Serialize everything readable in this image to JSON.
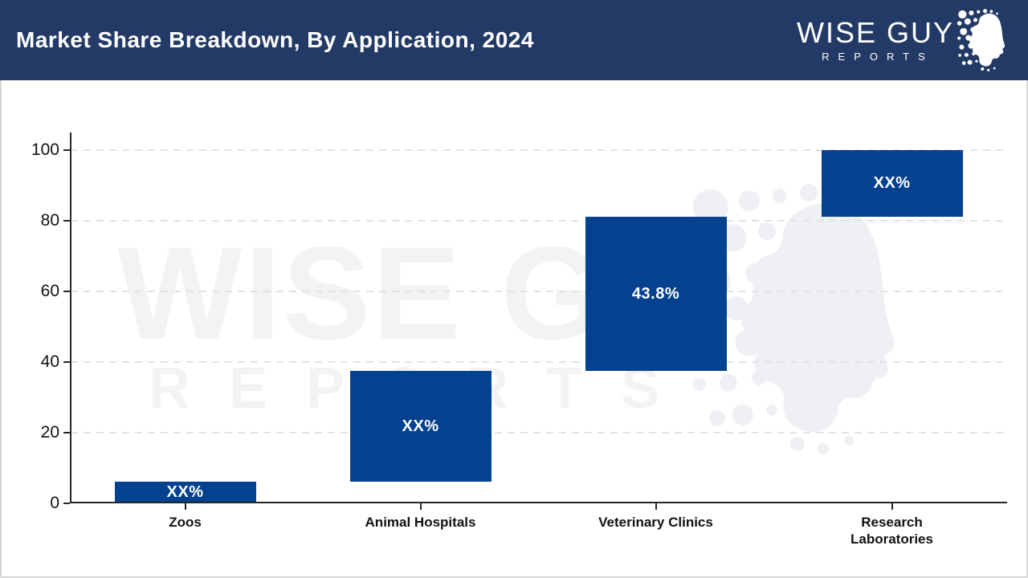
{
  "header": {
    "title": "Market Share Breakdown, By Application, 2024",
    "logo": {
      "name": "WISE GUY",
      "sub": "REPORTS"
    }
  },
  "watermark": {
    "brand": "WISE GUY",
    "sub": "REPORTS"
  },
  "chart_data": {
    "type": "bar",
    "subtype": "floating-segment-waterfall",
    "title": "Market Share Breakdown, By Application, 2024",
    "xlabel": "",
    "ylabel": "",
    "categories": [
      "Zoos",
      "Animal Hospitals",
      "Veterinary Clinics",
      "Research Laboratories"
    ],
    "category_lines": [
      [
        "Zoos"
      ],
      [
        "Animal Hospitals"
      ],
      [
        "Veterinary Clinics"
      ],
      [
        "Research",
        "Laboratories"
      ]
    ],
    "series": [
      {
        "name": "Market Share (%)",
        "segments": [
          [
            0,
            6.2
          ],
          [
            6.2,
            37.4
          ],
          [
            37.4,
            81.2
          ],
          [
            81.2,
            100
          ]
        ],
        "bar_labels": [
          "XX%",
          "XX%",
          "43.8%",
          "XX%"
        ]
      }
    ],
    "ylim": [
      0,
      100
    ],
    "yticks": [
      0,
      20,
      40,
      60,
      80,
      100
    ],
    "grid": "horizontal-dashed",
    "legend": "none",
    "colors": {
      "bar": "#04418F",
      "header_bg": "#243A66",
      "grid": "#E3E3E6",
      "axis": "#262626",
      "bar_label_text": "#FFFFFF",
      "watermark": "#F3F3F4"
    }
  }
}
